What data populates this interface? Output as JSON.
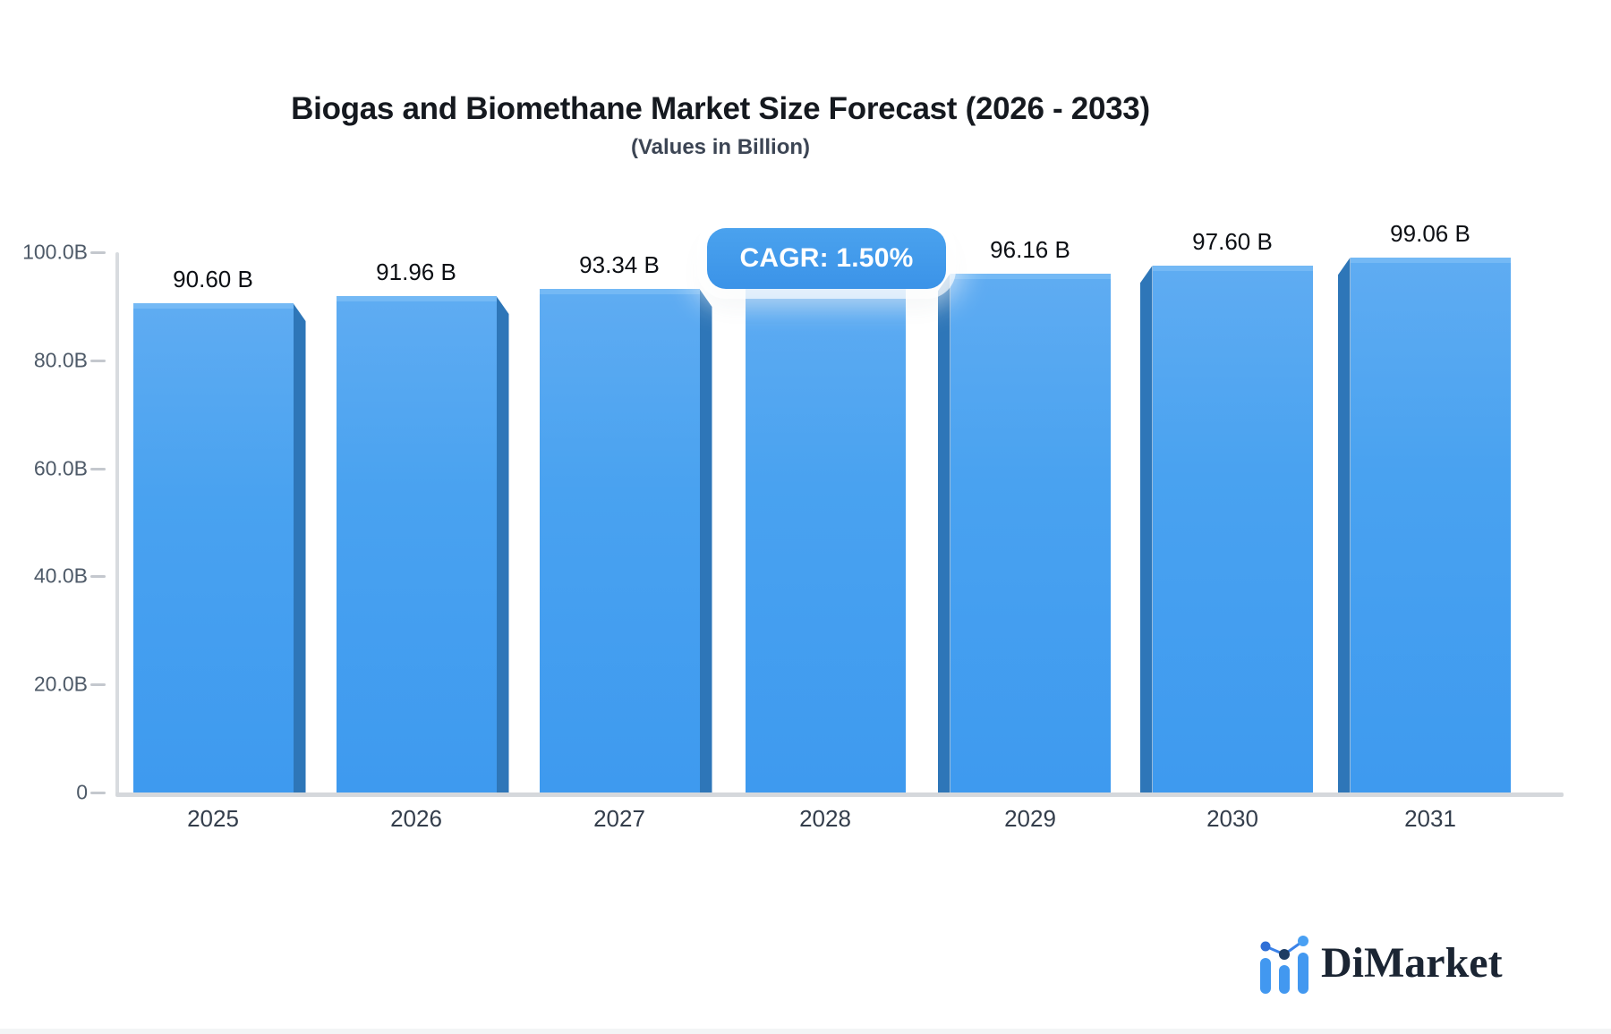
{
  "title": "Biogas and Biomethane Market Size Forecast (2026 - 2033)",
  "subtitle": "(Values in Billion)",
  "cagr_badge": "CAGR: 1.50%",
  "chart_data": {
    "type": "bar",
    "title": "Biogas and Biomethane Market Size Forecast (2026 - 2033)",
    "subtitle": "(Values in Billion)",
    "categories": [
      "2025",
      "2026",
      "2027",
      "2028",
      "2029",
      "2030",
      "2031"
    ],
    "values": [
      90.6,
      91.96,
      93.34,
      94.74,
      96.16,
      97.6,
      99.06
    ],
    "value_labels": [
      "90.60 B",
      "91.96 B",
      "93.34 B",
      "",
      "96.16 B",
      "97.60 B",
      "99.06 B"
    ],
    "y_ticks": [
      "100.0B",
      "80.0B",
      "60.0B",
      "40.0B",
      "20.0B",
      "0"
    ],
    "ylim": [
      0,
      100
    ],
    "xlabel": "",
    "ylabel": "",
    "grid": false,
    "legend": false,
    "annotation": "CAGR: 1.50%",
    "colors": {
      "bar": "#429FF0",
      "bar_top_cap": "#74B9F5",
      "bar_side_shade": "#2E76B8",
      "badge": "#3E97EA",
      "axis": "#D5D8DC",
      "tick_text": "#4E5A68",
      "title_text": "#15191F"
    }
  },
  "footer": {
    "brand": "DiMarket"
  }
}
